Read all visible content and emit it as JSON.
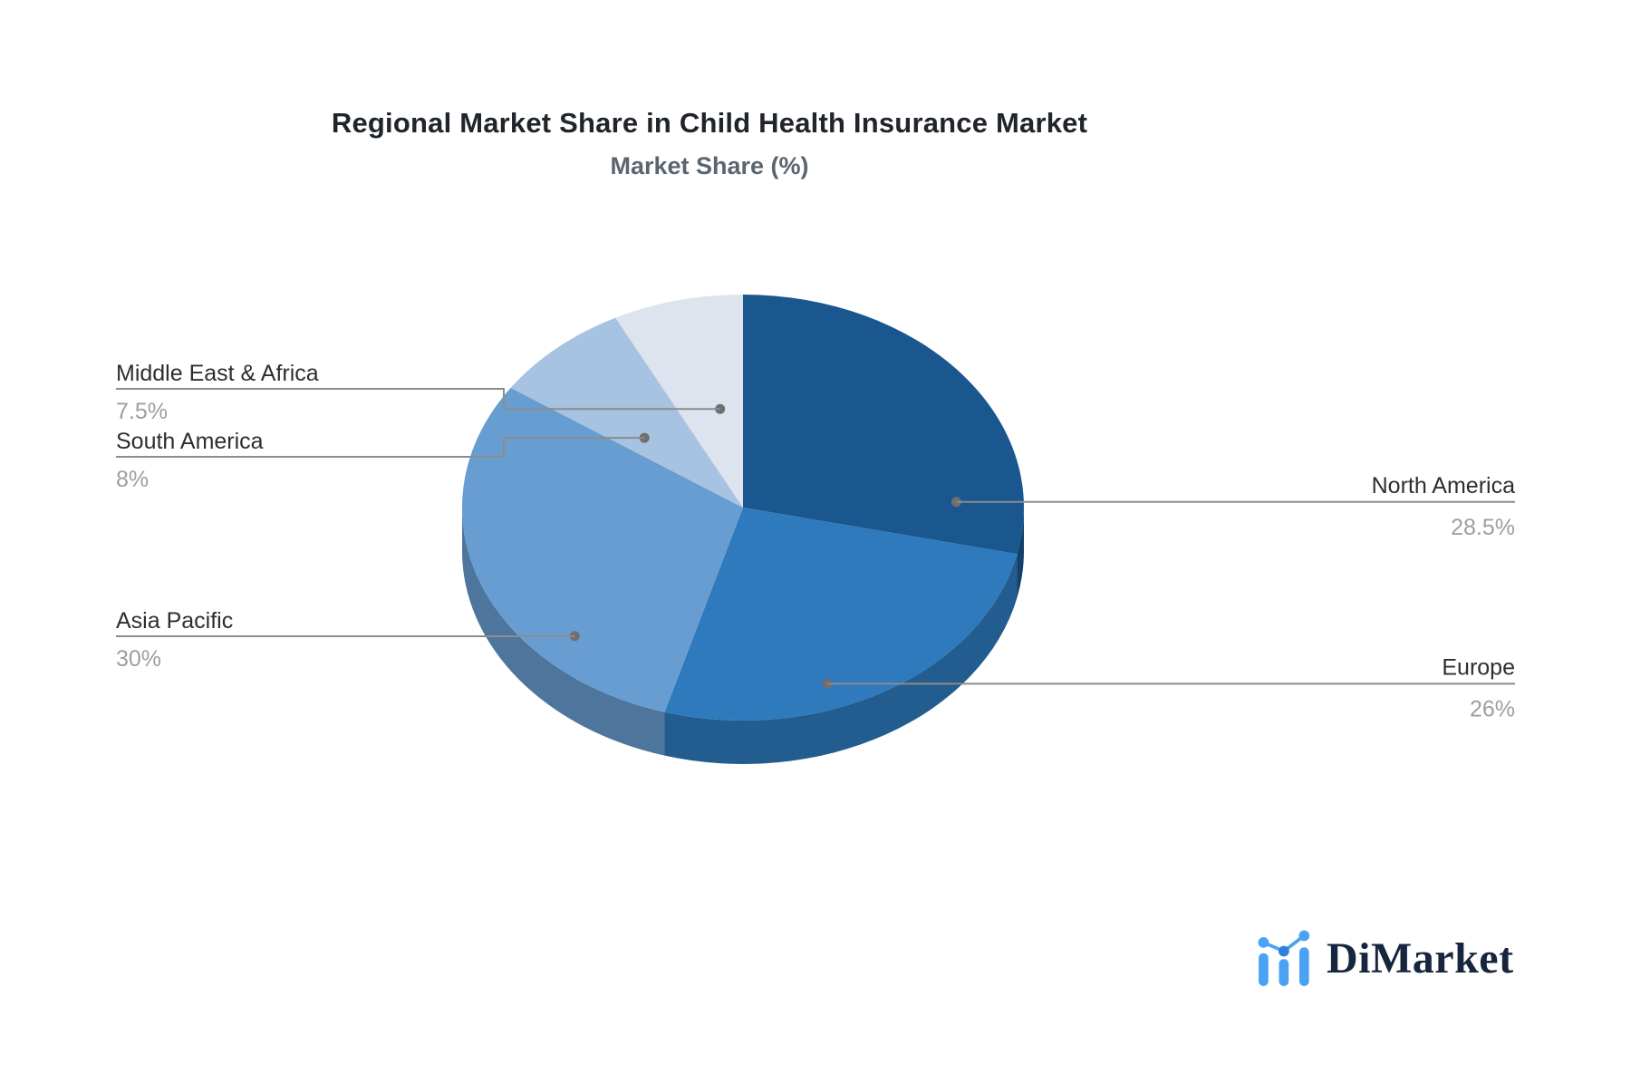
{
  "header": {
    "title": "Regional Market Share in Child Health Insurance Market",
    "subtitle": "Market Share (%)"
  },
  "chart_data": {
    "type": "pie",
    "title": "Regional Market Share in Child Health Insurance Market",
    "subtitle": "Market Share (%)",
    "unit": "%",
    "start_angle": "12-o'clock",
    "direction": "clockwise",
    "style": "3d-depth-pie with callout leader lines",
    "legend_position": "callout-labels",
    "slices": [
      {
        "label": "North America",
        "value": 28.5,
        "display": "28.5%",
        "color": "#1a578f"
      },
      {
        "label": "Europe",
        "value": 26,
        "display": "26%",
        "color": "#2e7abd"
      },
      {
        "label": "Asia Pacific",
        "value": 30,
        "display": "30%",
        "color": "#689dd1"
      },
      {
        "label": "South America",
        "value": 8,
        "display": "8%",
        "color": "#a6c3e1"
      },
      {
        "label": "Middle East & Africa",
        "value": 7.5,
        "display": "7.5%",
        "color": "#dde4ee"
      }
    ],
    "label_color": "#2e2e2e",
    "value_color": "#9e9e9e",
    "leader_line_color": "#8c8c8c"
  },
  "brand": {
    "name": "DiMarket"
  }
}
